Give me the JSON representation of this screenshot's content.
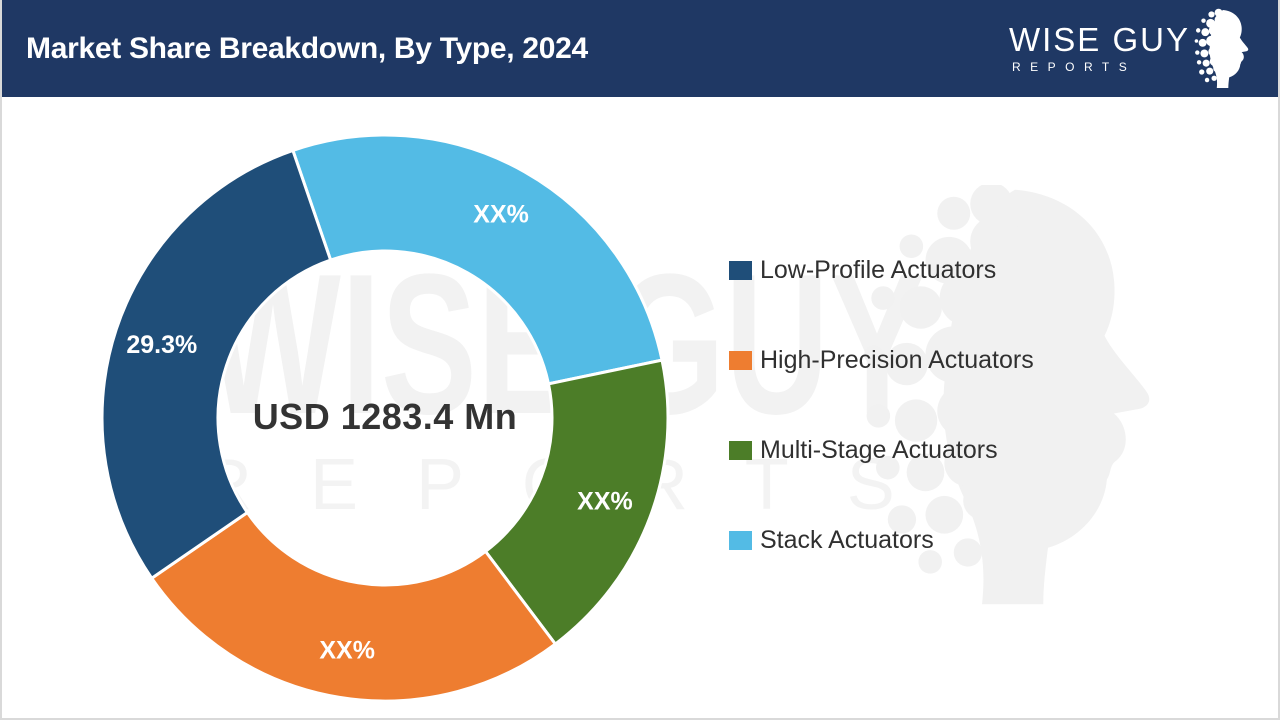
{
  "header": {
    "title": "Market Share Breakdown, By Type, 2024",
    "logo": {
      "wordmark": "WISE GUY",
      "subtitle": "REPORTS"
    }
  },
  "watermark": {
    "line1": "WISE GUY",
    "line2": "REPORTS"
  },
  "chart_data": {
    "type": "donut",
    "title": "Market Share Breakdown, By Type, 2024",
    "center_label": "USD 1283.4 Mn",
    "start_angle_deg": -19,
    "donut_hole_ratio": 0.59,
    "legend_position": "right",
    "segments_clockwise": [
      {
        "name": "Stack Actuators",
        "label": "XX%",
        "value_pct": 27.0,
        "color": "#53BBE5"
      },
      {
        "name": "Multi-Stage Actuators",
        "label": "XX%",
        "value_pct": 18.0,
        "color": "#4C7D28"
      },
      {
        "name": "High-Precision Actuators",
        "label": "XX%",
        "value_pct": 25.7,
        "color": "#EE7D30"
      },
      {
        "name": "Low-Profile Actuators",
        "label": "29.3%",
        "value_pct": 29.3,
        "color": "#1F4E79"
      }
    ]
  },
  "legend": {
    "items": [
      {
        "label": "Low-Profile Actuators",
        "color": "#1F4E79"
      },
      {
        "label": "High-Precision Actuators",
        "color": "#EE7D30"
      },
      {
        "label": "Multi-Stage Actuators",
        "color": "#4C7D28"
      },
      {
        "label": "Stack Actuators",
        "color": "#53BBE5"
      }
    ]
  },
  "colors": {
    "header_bg": "#1F3864",
    "text_dark": "#333333",
    "watermark": "#F2F2F2",
    "frame_border": "#D9D9D9"
  }
}
